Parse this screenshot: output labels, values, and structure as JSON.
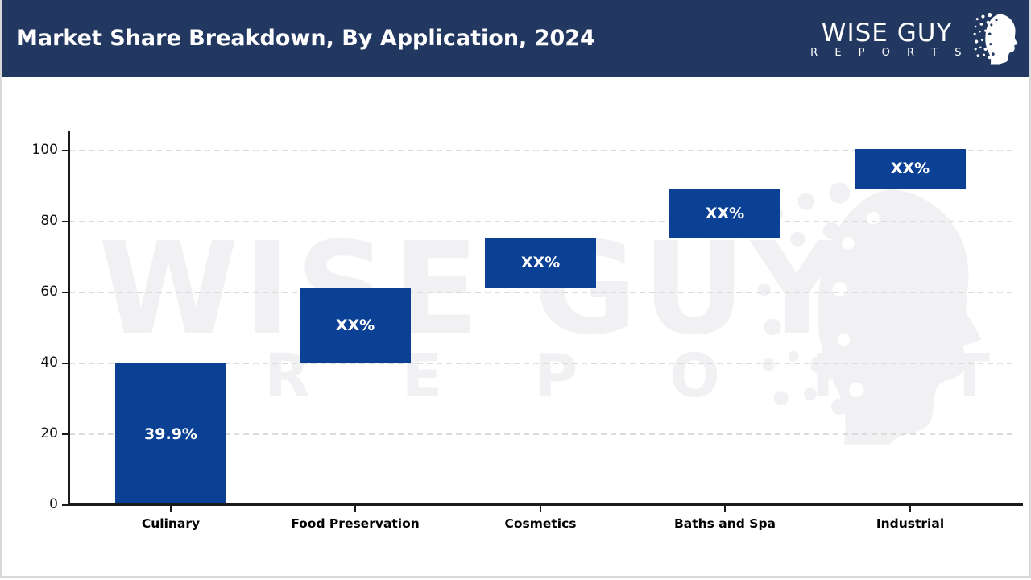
{
  "header": {
    "title": "Market Share Breakdown, By Application, 2024",
    "logo": {
      "line1": "WISE GUY",
      "line2": "R E P O R T S"
    }
  },
  "watermark": {
    "line1": "WISE GUY",
    "line2": "R E P O R T S"
  },
  "colors": {
    "header_bg": "#223861",
    "bar": "#0A4194",
    "title_text": "#FFFFFF",
    "axis": "#1A1A1A",
    "grid": "#DCDCDC",
    "watermark": "#F1F1F4",
    "frame_border": "#D9D9D9",
    "bar_label": "#FFFFFF",
    "category_label": "#000000"
  },
  "chart_data": {
    "type": "bar",
    "subtype": "waterfall",
    "title": "Market Share Breakdown, By Application, 2024",
    "categories": [
      "Culinary",
      "Food Preservation",
      "Cosmetics",
      "Baths and Spa",
      "Industrial"
    ],
    "segments": [
      {
        "category": "Culinary",
        "start": 0,
        "end": 39.9,
        "label": "39.9%"
      },
      {
        "category": "Food Preservation",
        "start": 39.9,
        "end": 61.4,
        "label": "XX%"
      },
      {
        "category": "Cosmetics",
        "start": 61.4,
        "end": 75.2,
        "label": "XX%"
      },
      {
        "category": "Baths and Spa",
        "start": 75.2,
        "end": 89.3,
        "label": "XX%"
      },
      {
        "category": "Industrial",
        "start": 89.3,
        "end": 100.5,
        "label": "XX%"
      }
    ],
    "yticks": [
      0,
      20,
      40,
      60,
      80,
      100
    ],
    "ylim": [
      0,
      105
    ],
    "xlabel": "",
    "ylabel": "",
    "grid": "horizontal-dashed",
    "legend": "none"
  }
}
